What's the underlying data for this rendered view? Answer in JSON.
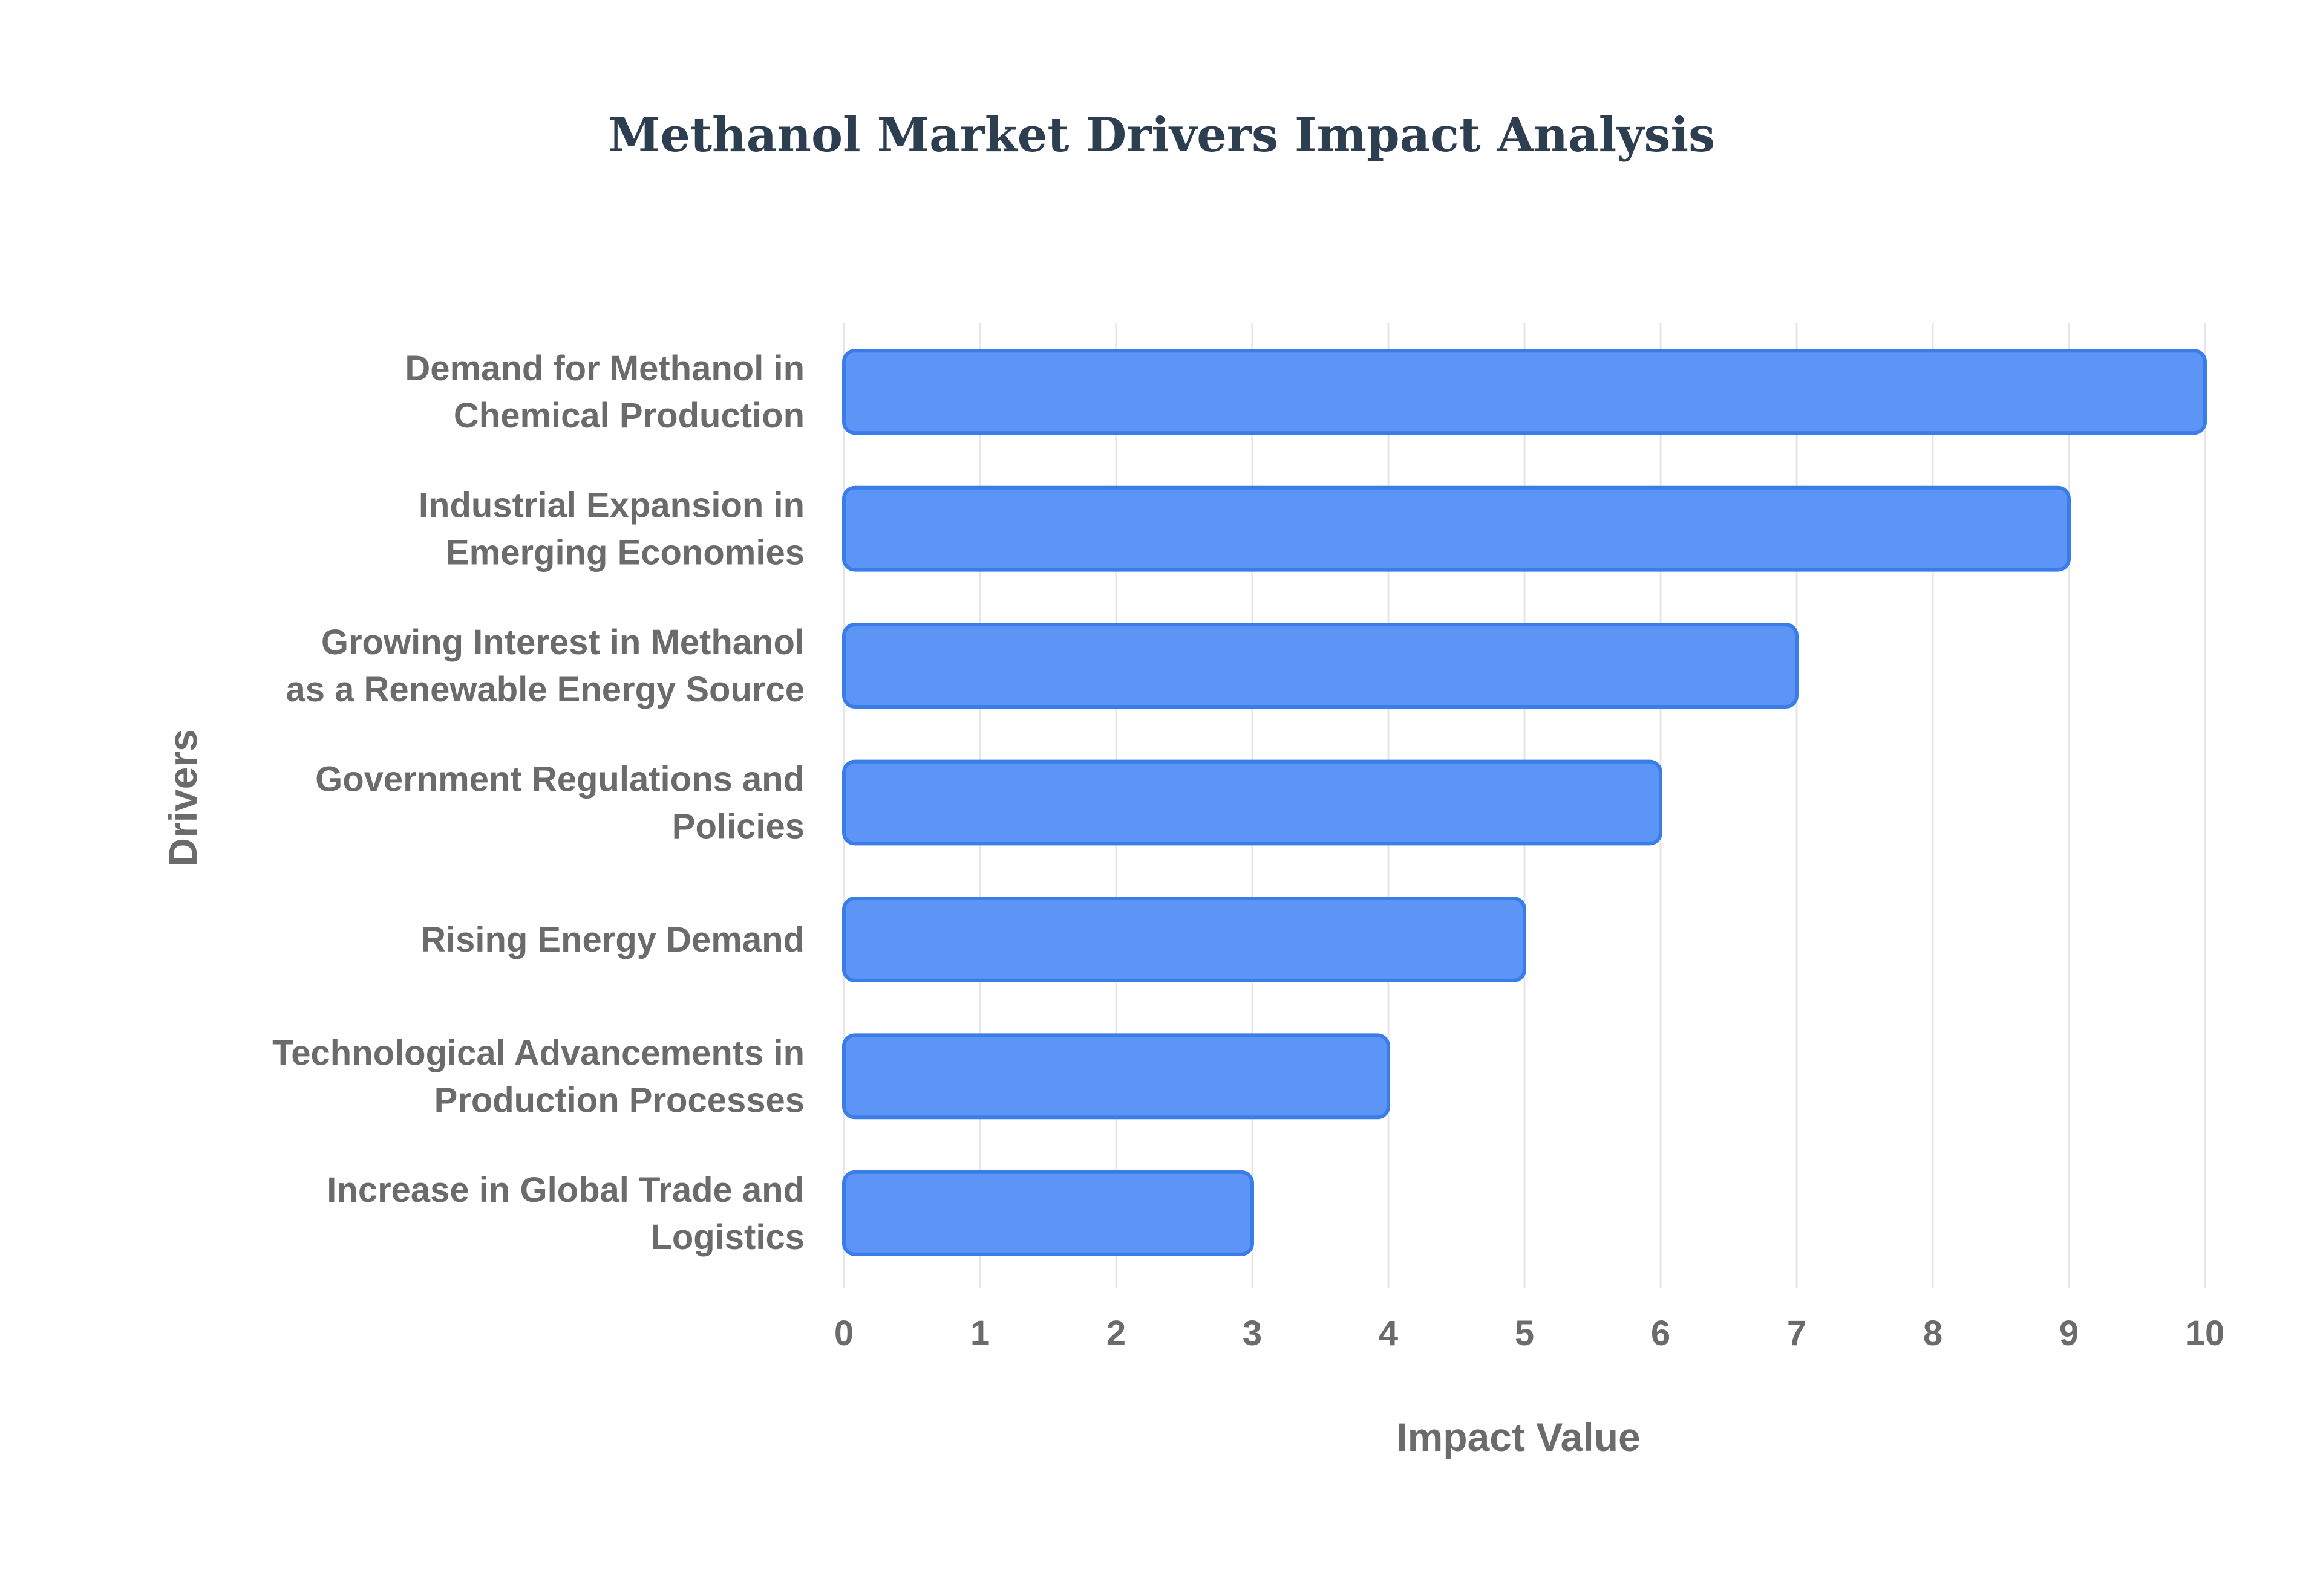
{
  "chart_data": {
    "type": "bar",
    "orientation": "horizontal",
    "title": "Methanol Market Drivers Impact Analysis",
    "xlabel": "Impact Value",
    "ylabel": "Drivers",
    "categories": [
      "Demand for Methanol in Chemical Production",
      "Industrial Expansion in Emerging Economies",
      "Growing Interest in Methanol as a Renewable Energy Source",
      "Government Regulations and Policies",
      "Rising Energy Demand",
      "Technological Advancements in Production Processes",
      "Increase in Global Trade and Logistics"
    ],
    "category_label_lines": [
      [
        "Demand for Methanol in",
        "Chemical Production"
      ],
      [
        "Industrial Expansion in",
        "Emerging Economies"
      ],
      [
        "Growing Interest in Methanol",
        "as a Renewable Energy Source"
      ],
      [
        "Government Regulations and",
        "Policies"
      ],
      [
        "Rising Energy Demand"
      ],
      [
        "Technological Advancements in",
        "Production Processes"
      ],
      [
        "Increase in Global Trade and",
        "Logistics"
      ]
    ],
    "values": [
      10,
      9,
      7,
      6,
      5,
      4,
      3
    ],
    "xlim": [
      0,
      10
    ],
    "xticks": [
      "0",
      "1",
      "2",
      "3",
      "4",
      "5",
      "6",
      "7",
      "8",
      "9",
      "10"
    ],
    "grid": true,
    "legend": "none",
    "colors": {
      "bar_fill": "#5c95f5",
      "bar_edge": "#3b7de8",
      "grid": "#e6e6e6",
      "label_text": "#6b6b6b",
      "title_text": "#2c3e50"
    }
  }
}
